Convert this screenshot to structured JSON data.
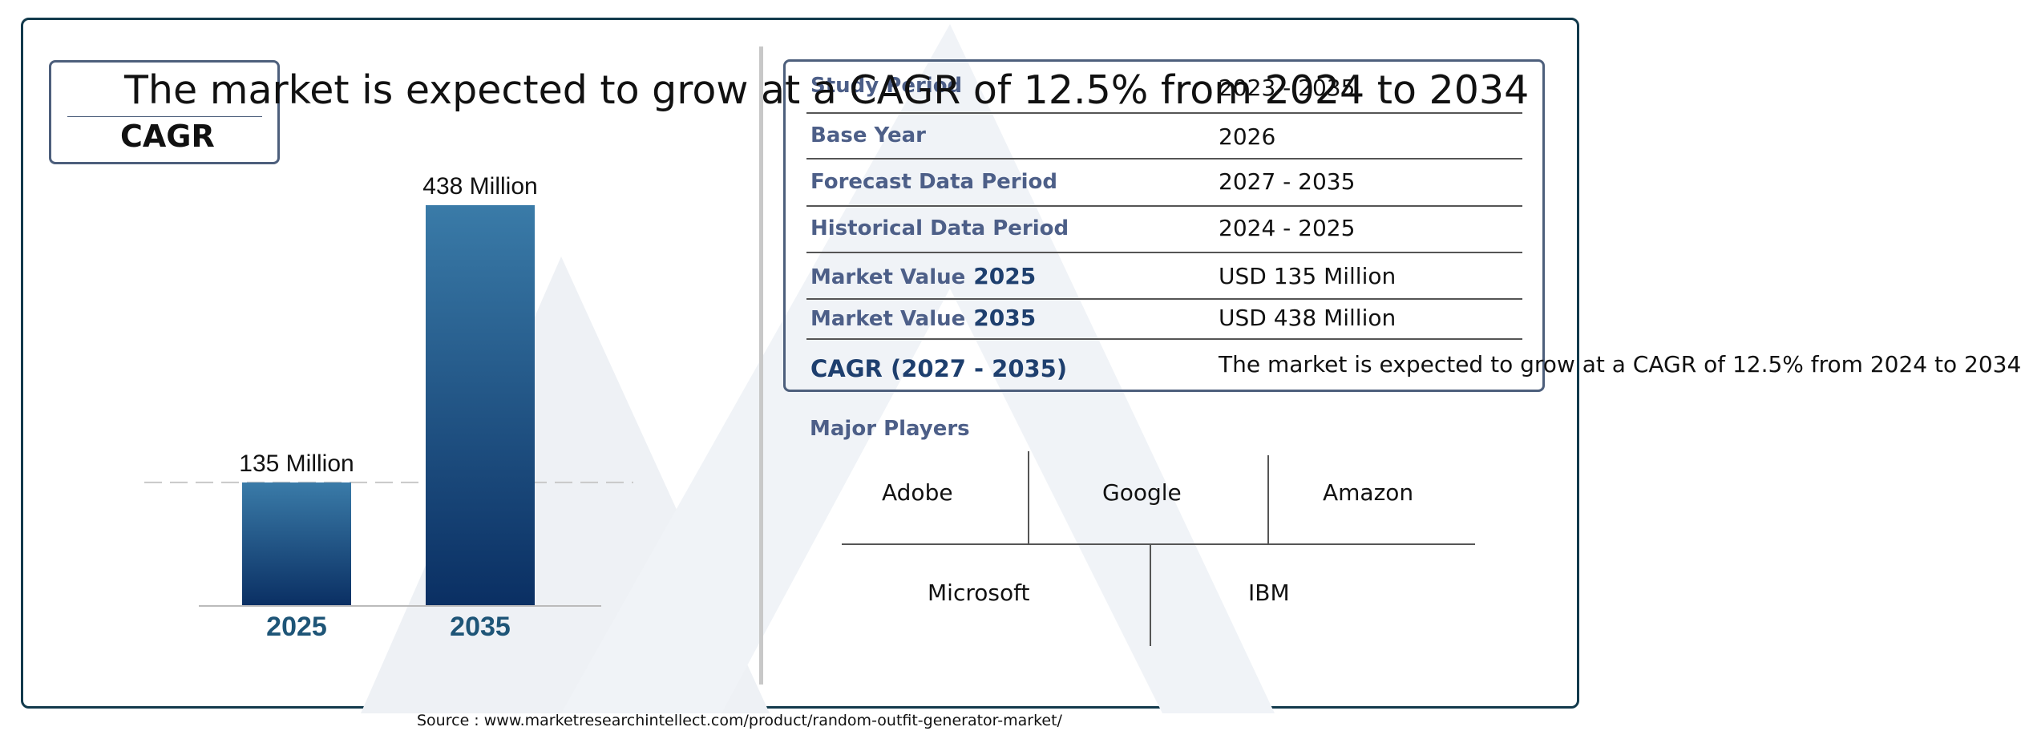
{
  "headline": "The market is expected to grow at a CAGR of 12.5% from 2024 to 2034",
  "cagr_label": "CAGR",
  "table": {
    "rows": [
      {
        "label": "Study Period",
        "value": "2023 - 2035"
      },
      {
        "label": "Base Year",
        "value": "2026"
      },
      {
        "label": "Forecast Data Period",
        "value": "2027 - 2035"
      },
      {
        "label": "Historical Data Period",
        "value": "2024 - 2025"
      },
      {
        "label": "Market Value",
        "year": "2025",
        "value": "USD 135 Million"
      },
      {
        "label": "Market Value",
        "year": "2035",
        "value": "USD 438 Million"
      },
      {
        "label": "CAGR (2027 - 2035)",
        "value": "The market is expected to grow at a CAGR of 12.5% from 2024 to 2034"
      }
    ]
  },
  "players": {
    "title": "Major Players",
    "names": [
      "Adobe",
      "Google",
      "Amazon",
      "Microsoft",
      "IBM"
    ]
  },
  "source": "Source : www.marketresearchintellect.com/product/random-outfit-generator-market/",
  "colors": {
    "bar_top": "#3a7ba8",
    "bar_bottom": "#0a2f63",
    "frame": "#123a4c",
    "label": "#4d5f88"
  },
  "chart_data": {
    "type": "bar",
    "categories": [
      "2025",
      "2035"
    ],
    "values": [
      135,
      438
    ],
    "value_labels": [
      "135 Million",
      "438 Million"
    ],
    "ylim": [
      0,
      438
    ],
    "grid": false,
    "reference_line": 135
  }
}
